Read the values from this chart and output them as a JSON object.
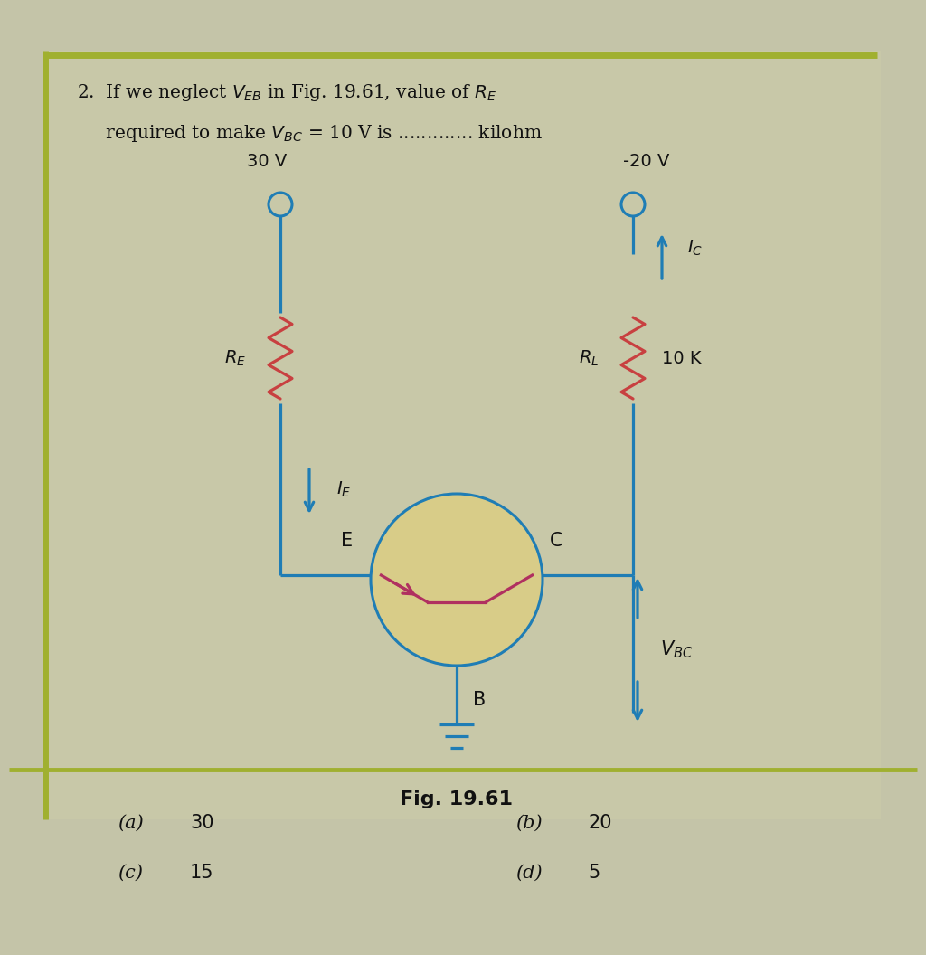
{
  "title_line1": "2.  If we neglect $V_{EB}$ in Fig. 19.61, value of $R_E$",
  "title_line2": "     required to make $V_{BC}$ = 10 V is ............. kilohm",
  "fig_label": "Fig. 19.61",
  "bg_color": "#c4c4a8",
  "panel_bg": "#c4c4a8",
  "text_color": "#111111",
  "circuit_color": "#1f7db5",
  "resistor_color": "#c84040",
  "transistor_fill": "#d8cc88",
  "transistor_edge": "#1f7db5",
  "transistor_internal": "#b03060",
  "arrow_color": "#1f7db5",
  "options": [
    [
      "(a)",
      "30",
      "(b)",
      "20"
    ],
    [
      "(c)",
      "15",
      "(d)",
      "5"
    ]
  ],
  "v1_label": "30 V",
  "v2_label": "-20 V",
  "re_label": "$R_E$",
  "ie_label": "$I_E$",
  "rl_label": "$R_L$",
  "rl_value": "10 K",
  "ic_label": "$I_C$",
  "e_label": "E",
  "c_label": "C",
  "b_label": "B",
  "vbc_label": "$V_{BC}$"
}
